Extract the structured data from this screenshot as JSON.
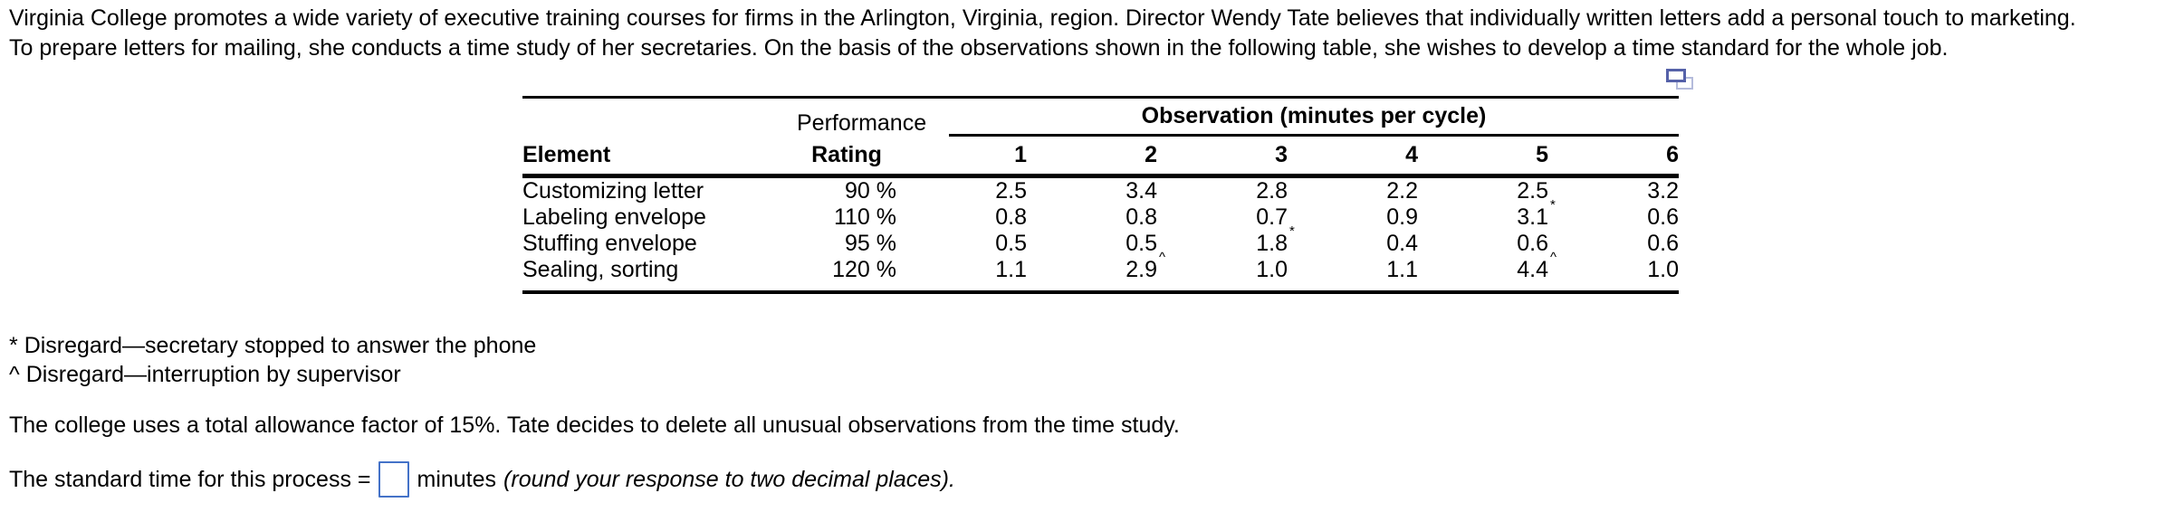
{
  "intro": {
    "line1": "Virginia College promotes a wide variety of executive training courses for firms in the Arlington, Virginia, region. Director Wendy Tate believes that individually written letters add a personal touch to marketing.",
    "line2": "To prepare letters for mailing, she conducts a time study of her secretaries. On the basis of the observations shown in the following table, she wishes to develop a time standard for the whole job."
  },
  "table": {
    "element_header": "Element",
    "rating_header_top": "Performance",
    "rating_header_bottom": "Rating",
    "obs_group_header": "Observation (minutes per cycle)",
    "obs_headers": [
      "1",
      "2",
      "3",
      "4",
      "5",
      "6"
    ],
    "rows": [
      {
        "element": "Customizing letter",
        "rating": "90 %",
        "obs": [
          "2.5",
          "3.4",
          "2.8",
          "2.2",
          "2.5",
          "3.2"
        ]
      },
      {
        "element": "Labeling envelope",
        "rating": "110 %",
        "obs": [
          "0.8",
          "0.8",
          "0.7",
          "0.9",
          "3.1*",
          "0.6"
        ]
      },
      {
        "element": "Stuffing envelope",
        "rating": "95 %",
        "obs": [
          "0.5",
          "0.5",
          "1.8*",
          "0.4",
          "0.6",
          "0.6"
        ]
      },
      {
        "element": "Sealing, sorting",
        "rating": "120 %",
        "obs": [
          "1.1",
          "2.9^",
          "1.0",
          "1.1",
          "4.4^",
          "1.0"
        ]
      }
    ]
  },
  "footnotes": [
    {
      "marker": "*",
      "text": "Disregard—secretary stopped to answer the phone"
    },
    {
      "marker": "^",
      "text": "Disregard—interruption by supervisor"
    }
  ],
  "allowance_text": "The college uses a total allowance factor of 15%. Tate decides to delete all unusual observations from the time study.",
  "answer": {
    "prefix": "The standard time for this process =",
    "input_value": "",
    "unit": "minutes",
    "note": "(round your response to two decimal places)."
  },
  "icons": {
    "copy_icon": "copy-popup-icon"
  },
  "colors": {
    "input_border": "#4472c8",
    "icon_front": "#5561a9",
    "icon_back": "#b4bbdb"
  }
}
